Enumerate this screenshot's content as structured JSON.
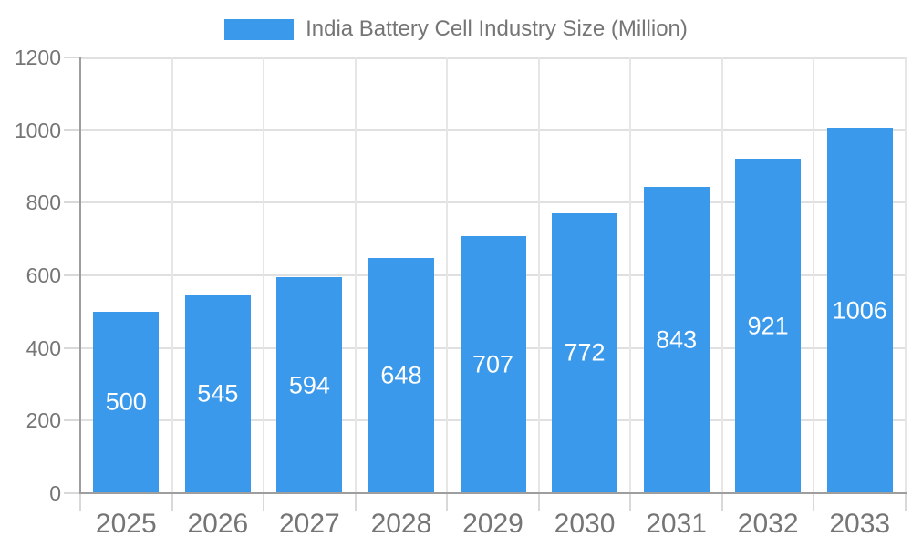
{
  "chart_data": {
    "type": "bar",
    "title": "India Battery Cell Industry Size (Million)",
    "categories": [
      "2025",
      "2026",
      "2027",
      "2028",
      "2029",
      "2030",
      "2031",
      "2032",
      "2033"
    ],
    "series": [
      {
        "name": "India Battery Cell Industry Size (Million)",
        "values": [
          500,
          545,
          594,
          648,
          707,
          772,
          843,
          921,
          1006
        ]
      }
    ],
    "data_labels": [
      "500",
      "545",
      "594",
      "648",
      "707",
      "772",
      "843",
      "921",
      "1006"
    ],
    "xlabel": "",
    "ylabel": "",
    "ylim": [
      0,
      1200
    ],
    "yticks": [
      0,
      200,
      400,
      600,
      800,
      1000,
      1200
    ],
    "ytick_labels": [
      "0",
      "200",
      "400",
      "600",
      "800",
      "1000",
      "1200"
    ],
    "grid": true,
    "legend_position": "top",
    "colors": {
      "bar": "#3B99EC",
      "bar_label": "#FFFFFF",
      "axis_line": "#9E9E9E",
      "gridline": "#E0E0E0",
      "vertical_gridline": "#E6E6E6",
      "tick": "#D9D9D9",
      "axis_text": "#757575",
      "background": "#FFFFFF"
    }
  }
}
